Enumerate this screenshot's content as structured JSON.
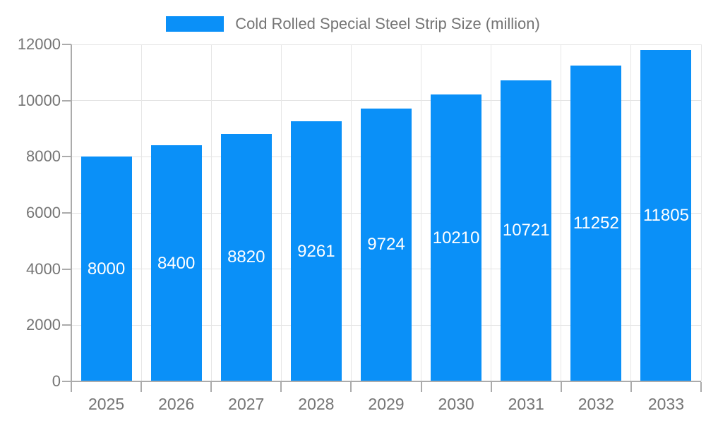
{
  "legend": {
    "label": "Cold Rolled Special Steel Strip Size (million)"
  },
  "colors": {
    "bar": "#0a90f8",
    "axis_text": "#757575",
    "grid_line": "#e3e3e3",
    "axis_line": "#ababab",
    "value_label": "#ffffff",
    "background": "#ffffff"
  },
  "chart_data": {
    "type": "bar",
    "title": "Cold Rolled Special Steel Strip Size (million)",
    "legend_entries": [
      "Cold Rolled Special Steel Strip Size (million)"
    ],
    "legend_position": "top",
    "categories": [
      "2025",
      "2026",
      "2027",
      "2028",
      "2029",
      "2030",
      "2031",
      "2032",
      "2033"
    ],
    "values": [
      8000,
      8400,
      8820,
      9261,
      9724,
      10210,
      10721,
      11252,
      11805
    ],
    "value_labels_shown_on_bars": true,
    "xlabel": "",
    "ylabel": "",
    "ylim": [
      0,
      12000
    ],
    "yticks": [
      0,
      2000,
      4000,
      6000,
      8000,
      10000,
      12000
    ],
    "grid": true,
    "bar_color": "#0a90f8"
  }
}
